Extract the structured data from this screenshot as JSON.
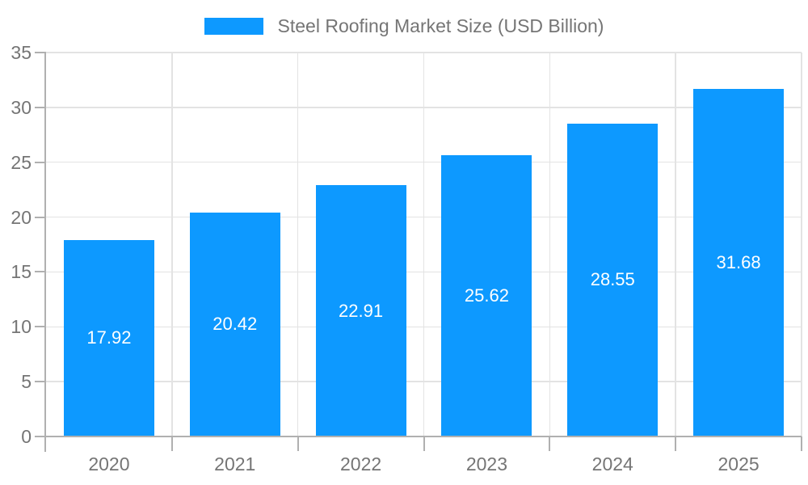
{
  "chart_data": {
    "type": "bar",
    "title": "Steel Roofing Market Size (USD Billion)",
    "series_name": "Steel Roofing Market Size (USD Billion)",
    "categories": [
      "2020",
      "2021",
      "2022",
      "2023",
      "2024",
      "2025"
    ],
    "values": [
      17.92,
      20.42,
      22.91,
      25.62,
      28.55,
      31.68
    ],
    "value_labels": [
      "17.92",
      "20.42",
      "22.91",
      "25.62",
      "28.55",
      "31.68"
    ],
    "xlabel": "",
    "ylabel": "",
    "ylim": [
      0,
      35
    ],
    "ytick_step": 5,
    "ytick_labels": [
      "0",
      "5",
      "10",
      "15",
      "20",
      "25",
      "30",
      "35"
    ],
    "grid": true,
    "legend_position": "top-center",
    "value_label_position": "inside-center",
    "colors": {
      "bar": "#0d99ff",
      "axis_line": "#b0b0b0",
      "gridline": "#e3e3e3",
      "tick_text": "#757575",
      "value_label_text": "#ffffff",
      "background": "#ffffff"
    }
  }
}
